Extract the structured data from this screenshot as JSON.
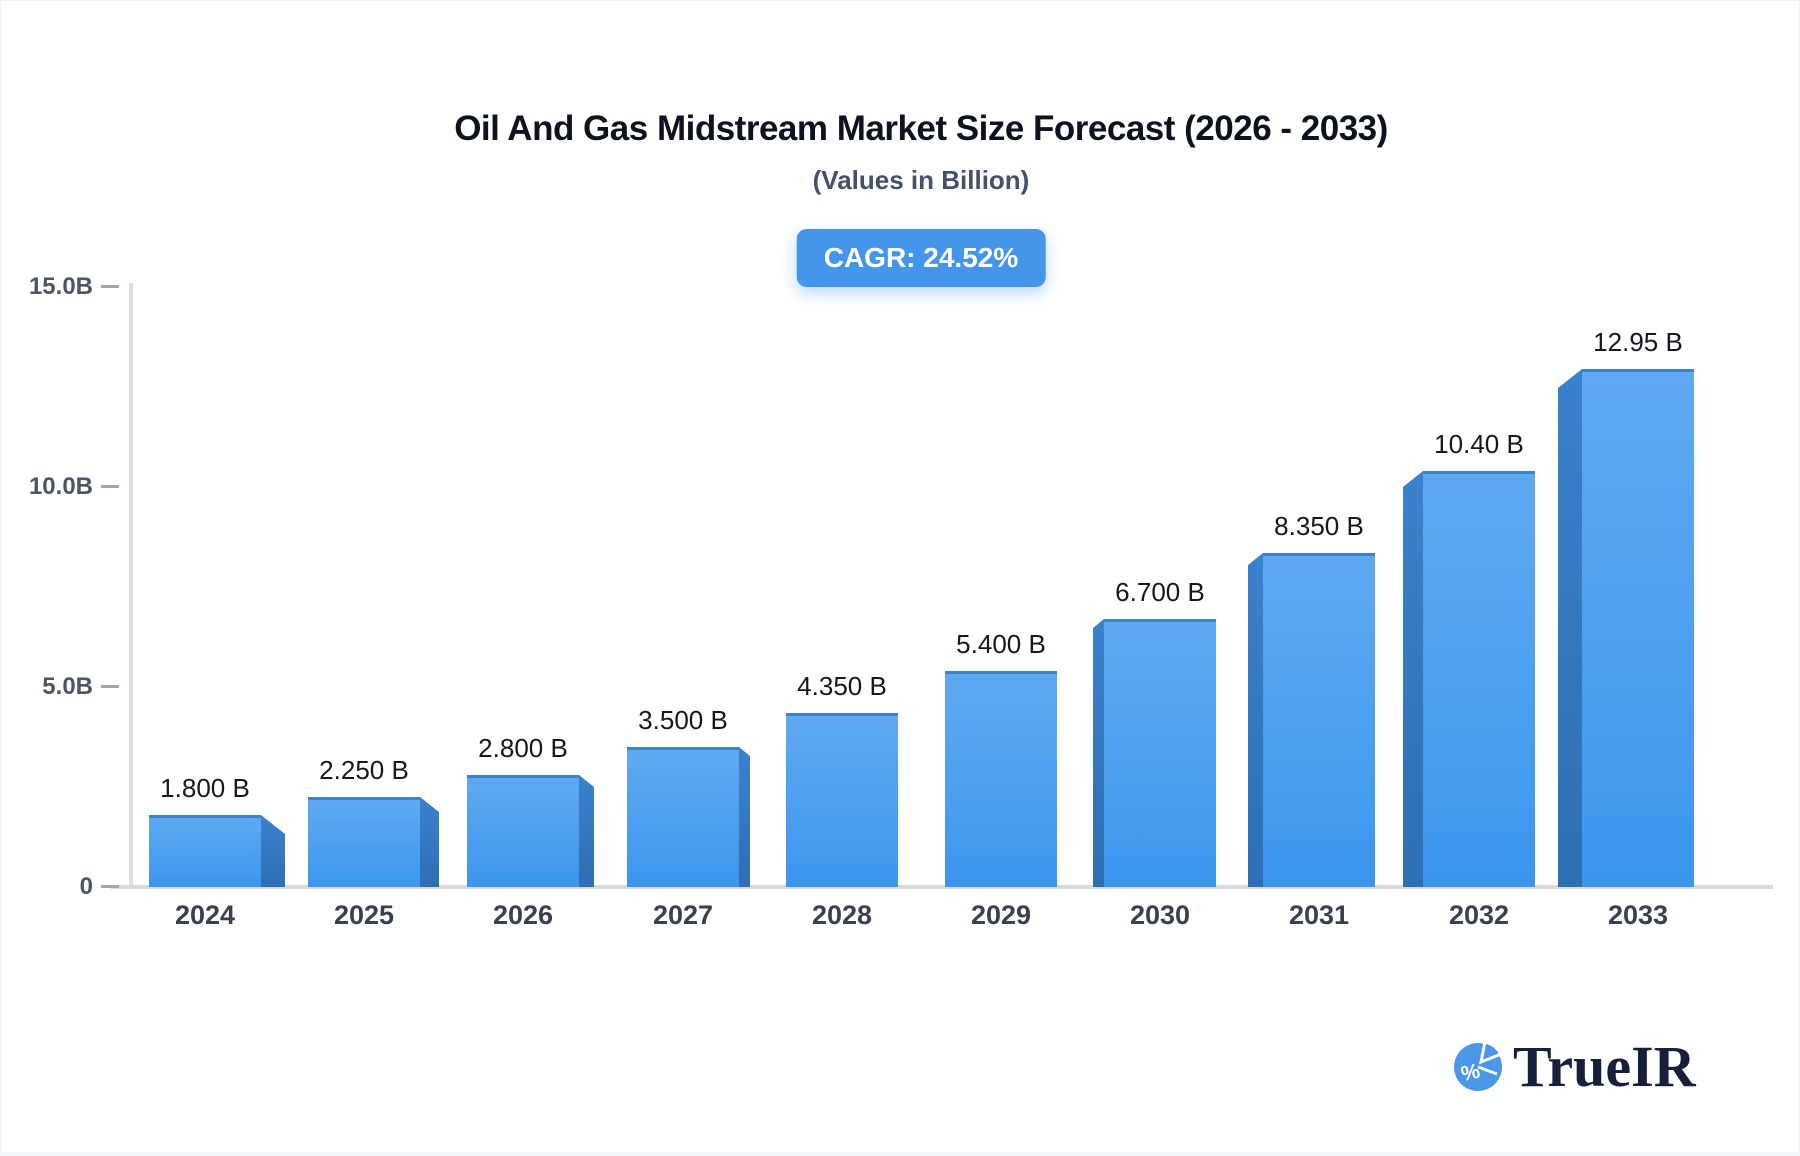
{
  "header": {
    "title": "Oil And Gas Midstream Market Size Forecast (2026 - 2033)",
    "subtitle": "(Values in Billion)",
    "cagr_label": "CAGR: 24.52%"
  },
  "chart_data": {
    "type": "bar",
    "title": "Oil And Gas Midstream Market Size Forecast (2026 - 2033)",
    "subtitle": "(Values in Billion)",
    "unit": "Billion",
    "categories": [
      "2024",
      "2025",
      "2026",
      "2027",
      "2028",
      "2029",
      "2030",
      "2031",
      "2032",
      "2033"
    ],
    "values": [
      1.8,
      2.25,
      2.8,
      3.5,
      4.35,
      5.4,
      6.7,
      8.35,
      10.4,
      12.95
    ],
    "value_labels": [
      "1.800 B",
      "2.250 B",
      "2.800 B",
      "3.500 B",
      "4.350 B",
      "5.400 B",
      "6.700 B",
      "8.350 B",
      "10.40 B",
      "12.95 B"
    ],
    "xlabel": "",
    "ylabel": "",
    "ylim": [
      0,
      15
    ],
    "yticks": [
      {
        "value": 0,
        "label": "0"
      },
      {
        "value": 5,
        "label": "5.0B"
      },
      {
        "value": 10,
        "label": "10.0B"
      },
      {
        "value": 15,
        "label": "15.0B"
      }
    ],
    "grid": false,
    "legend_position": "none",
    "style": "3d-column",
    "bar_color_top": "#5fa9f1",
    "bar_color_bottom": "#3c96ee",
    "bar_side_color": "#3173ba",
    "bar_top_edge_color": "#3d83ca"
  },
  "branding": {
    "logo_text": "TrueIR",
    "logo_icon": "pie-chart-percent-icon",
    "logo_icon_color": "#4a97e9",
    "logo_text_color": "#16203a"
  },
  "colors": {
    "badge_bg": "#4496ea",
    "badge_text": "#ffffff",
    "axis_line": "#dde1e7",
    "baseline": "#d6dae0",
    "tick_label": "#4a5566",
    "year_label": "#38414f",
    "value_label": "#14181f",
    "background": "#ffffff"
  }
}
